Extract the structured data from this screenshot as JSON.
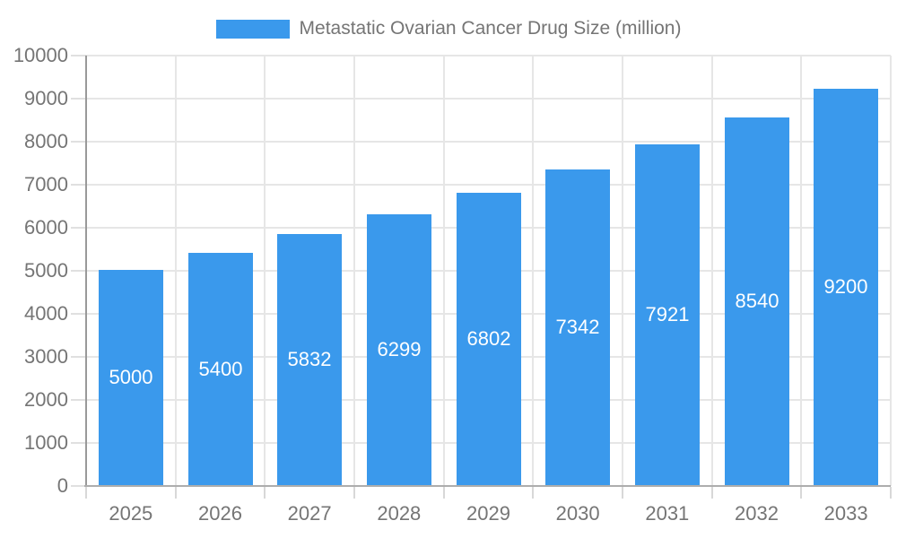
{
  "chart_data": {
    "type": "bar",
    "title": "Metastatic Ovarian Cancer Drug Size (million)",
    "legend_entries": [
      "Metastatic Ovarian Cancer Drug Size (million)"
    ],
    "legend_position": "top",
    "categories": [
      "2025",
      "2026",
      "2027",
      "2028",
      "2029",
      "2030",
      "2031",
      "2032",
      "2033"
    ],
    "values": [
      5000,
      5400,
      5832,
      6299,
      6802,
      7342,
      7921,
      8540,
      9200
    ],
    "value_labels": [
      "5000",
      "5400",
      "5832",
      "6299",
      "6802",
      "7342",
      "7921",
      "8540",
      "9200"
    ],
    "xlabel": "",
    "ylabel": "",
    "ylim": [
      0,
      10000
    ],
    "ytick_step": 1000,
    "ytick_labels": [
      "0",
      "1000",
      "2000",
      "3000",
      "4000",
      "5000",
      "6000",
      "7000",
      "8000",
      "9000",
      "10000"
    ],
    "grid": true,
    "colors": {
      "bar": "#3A99EC",
      "bar_value_label": "#FFFFFF",
      "axis_text": "#757575",
      "gridline": "#E6E6E6",
      "y_axis_line": "#999999",
      "x_axis_line": "#ADADAD"
    }
  }
}
